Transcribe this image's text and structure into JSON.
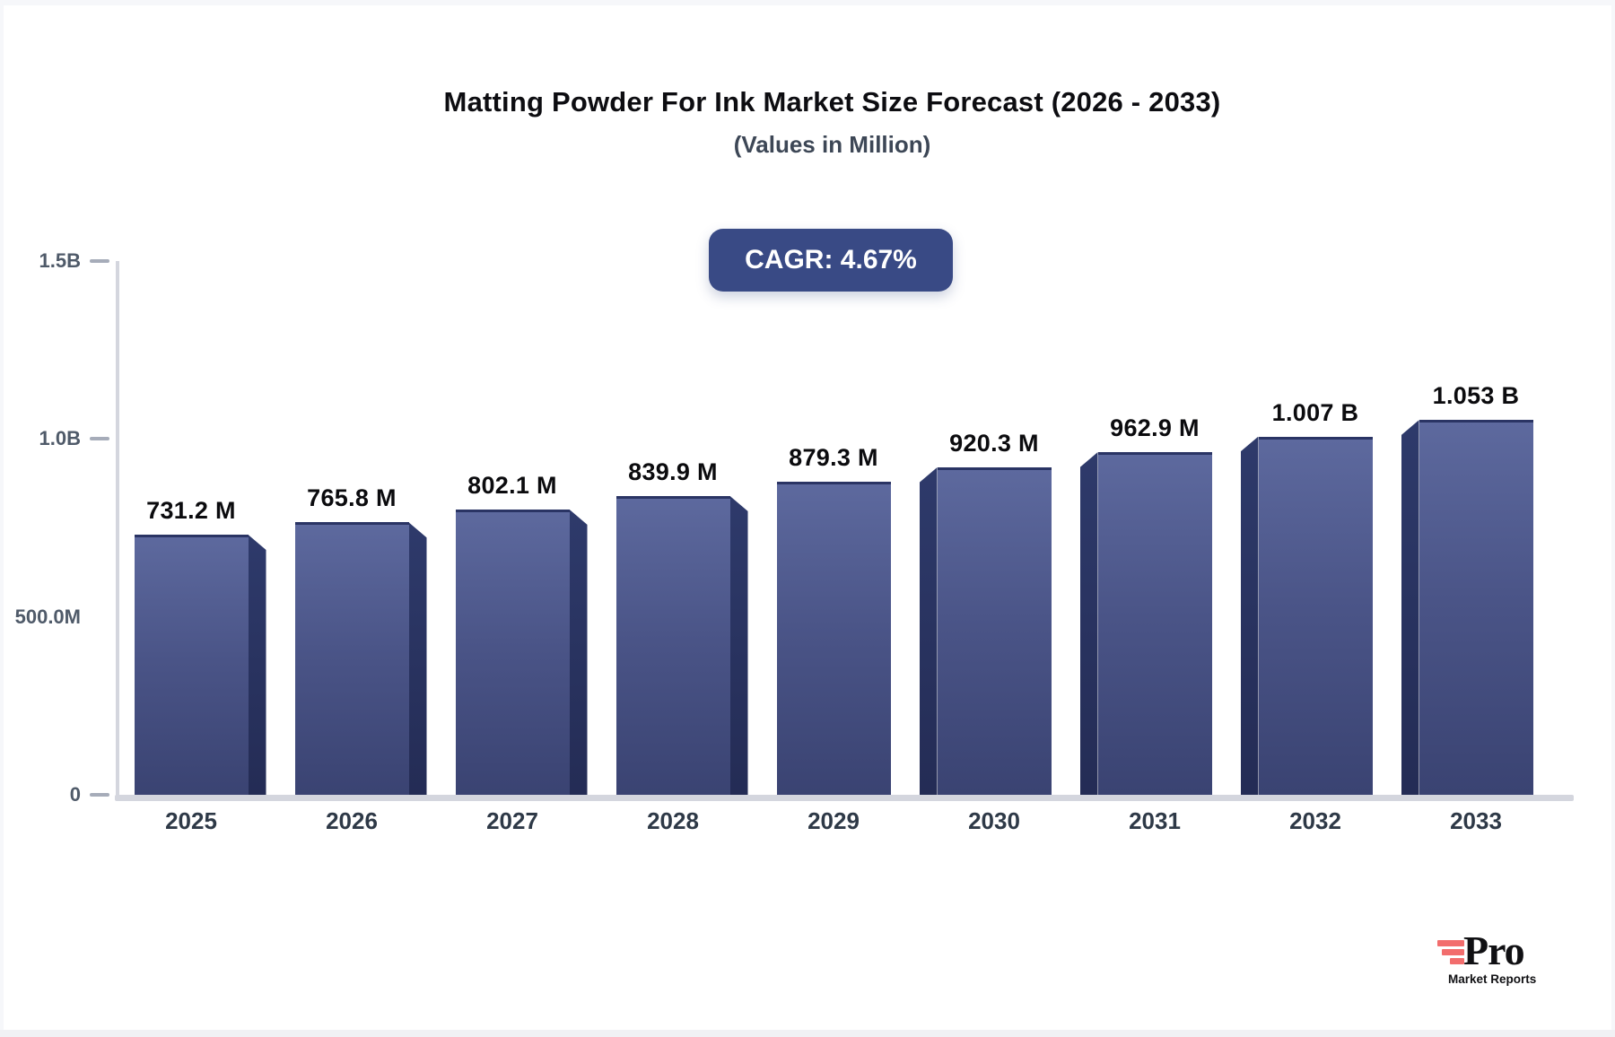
{
  "header": {
    "title": "Matting Powder For Ink Market Size Forecast (2026 - 2033)",
    "subtitle": "(Values in Million)"
  },
  "badge": {
    "label": "CAGR: 4.67%",
    "background_color": "#394a85",
    "text_color": "#ffffff"
  },
  "chart_data": {
    "type": "bar",
    "title": "Matting Powder For Ink Market Size Forecast (2026 - 2033)",
    "subtitle": "(Values in Million)",
    "categories": [
      "2025",
      "2026",
      "2027",
      "2028",
      "2029",
      "2030",
      "2031",
      "2032",
      "2033"
    ],
    "values_millions": [
      731.2,
      765.8,
      802.1,
      839.9,
      879.3,
      920.3,
      962.9,
      1007,
      1053
    ],
    "value_labels": [
      "731.2 M",
      "765.8 M",
      "802.1 M",
      "839.9 M",
      "879.3 M",
      "920.3 M",
      "962.9 M",
      "1.007 B",
      "1.053 B"
    ],
    "ylim_millions": [
      0,
      1500
    ],
    "y_axis_ticks": [
      {
        "label": "1.5B",
        "value_millions": 1500,
        "has_tick": true
      },
      {
        "label": "1.0B",
        "value_millions": 1000,
        "has_tick": true
      },
      {
        "label": "500.0M",
        "value_millions": 500,
        "has_tick": false
      },
      {
        "label": "0",
        "value_millions": 0,
        "has_tick": true
      }
    ],
    "grid": false,
    "legend": false,
    "annotations": [
      "CAGR: 4.67%"
    ],
    "bar_colors": {
      "face_top": "#5d699e",
      "face_bottom": "#3a4372",
      "top_edge": "#2a3464",
      "side_panel": "#2a3361"
    },
    "axis_color": "#d4d6de",
    "style_note": "3D extruded bars; side panel faces right for left bars, left for right bars, none on center bar"
  },
  "logo": {
    "text": "Pro",
    "subtext": "Market Reports",
    "accent_color": "#f26d6d"
  }
}
